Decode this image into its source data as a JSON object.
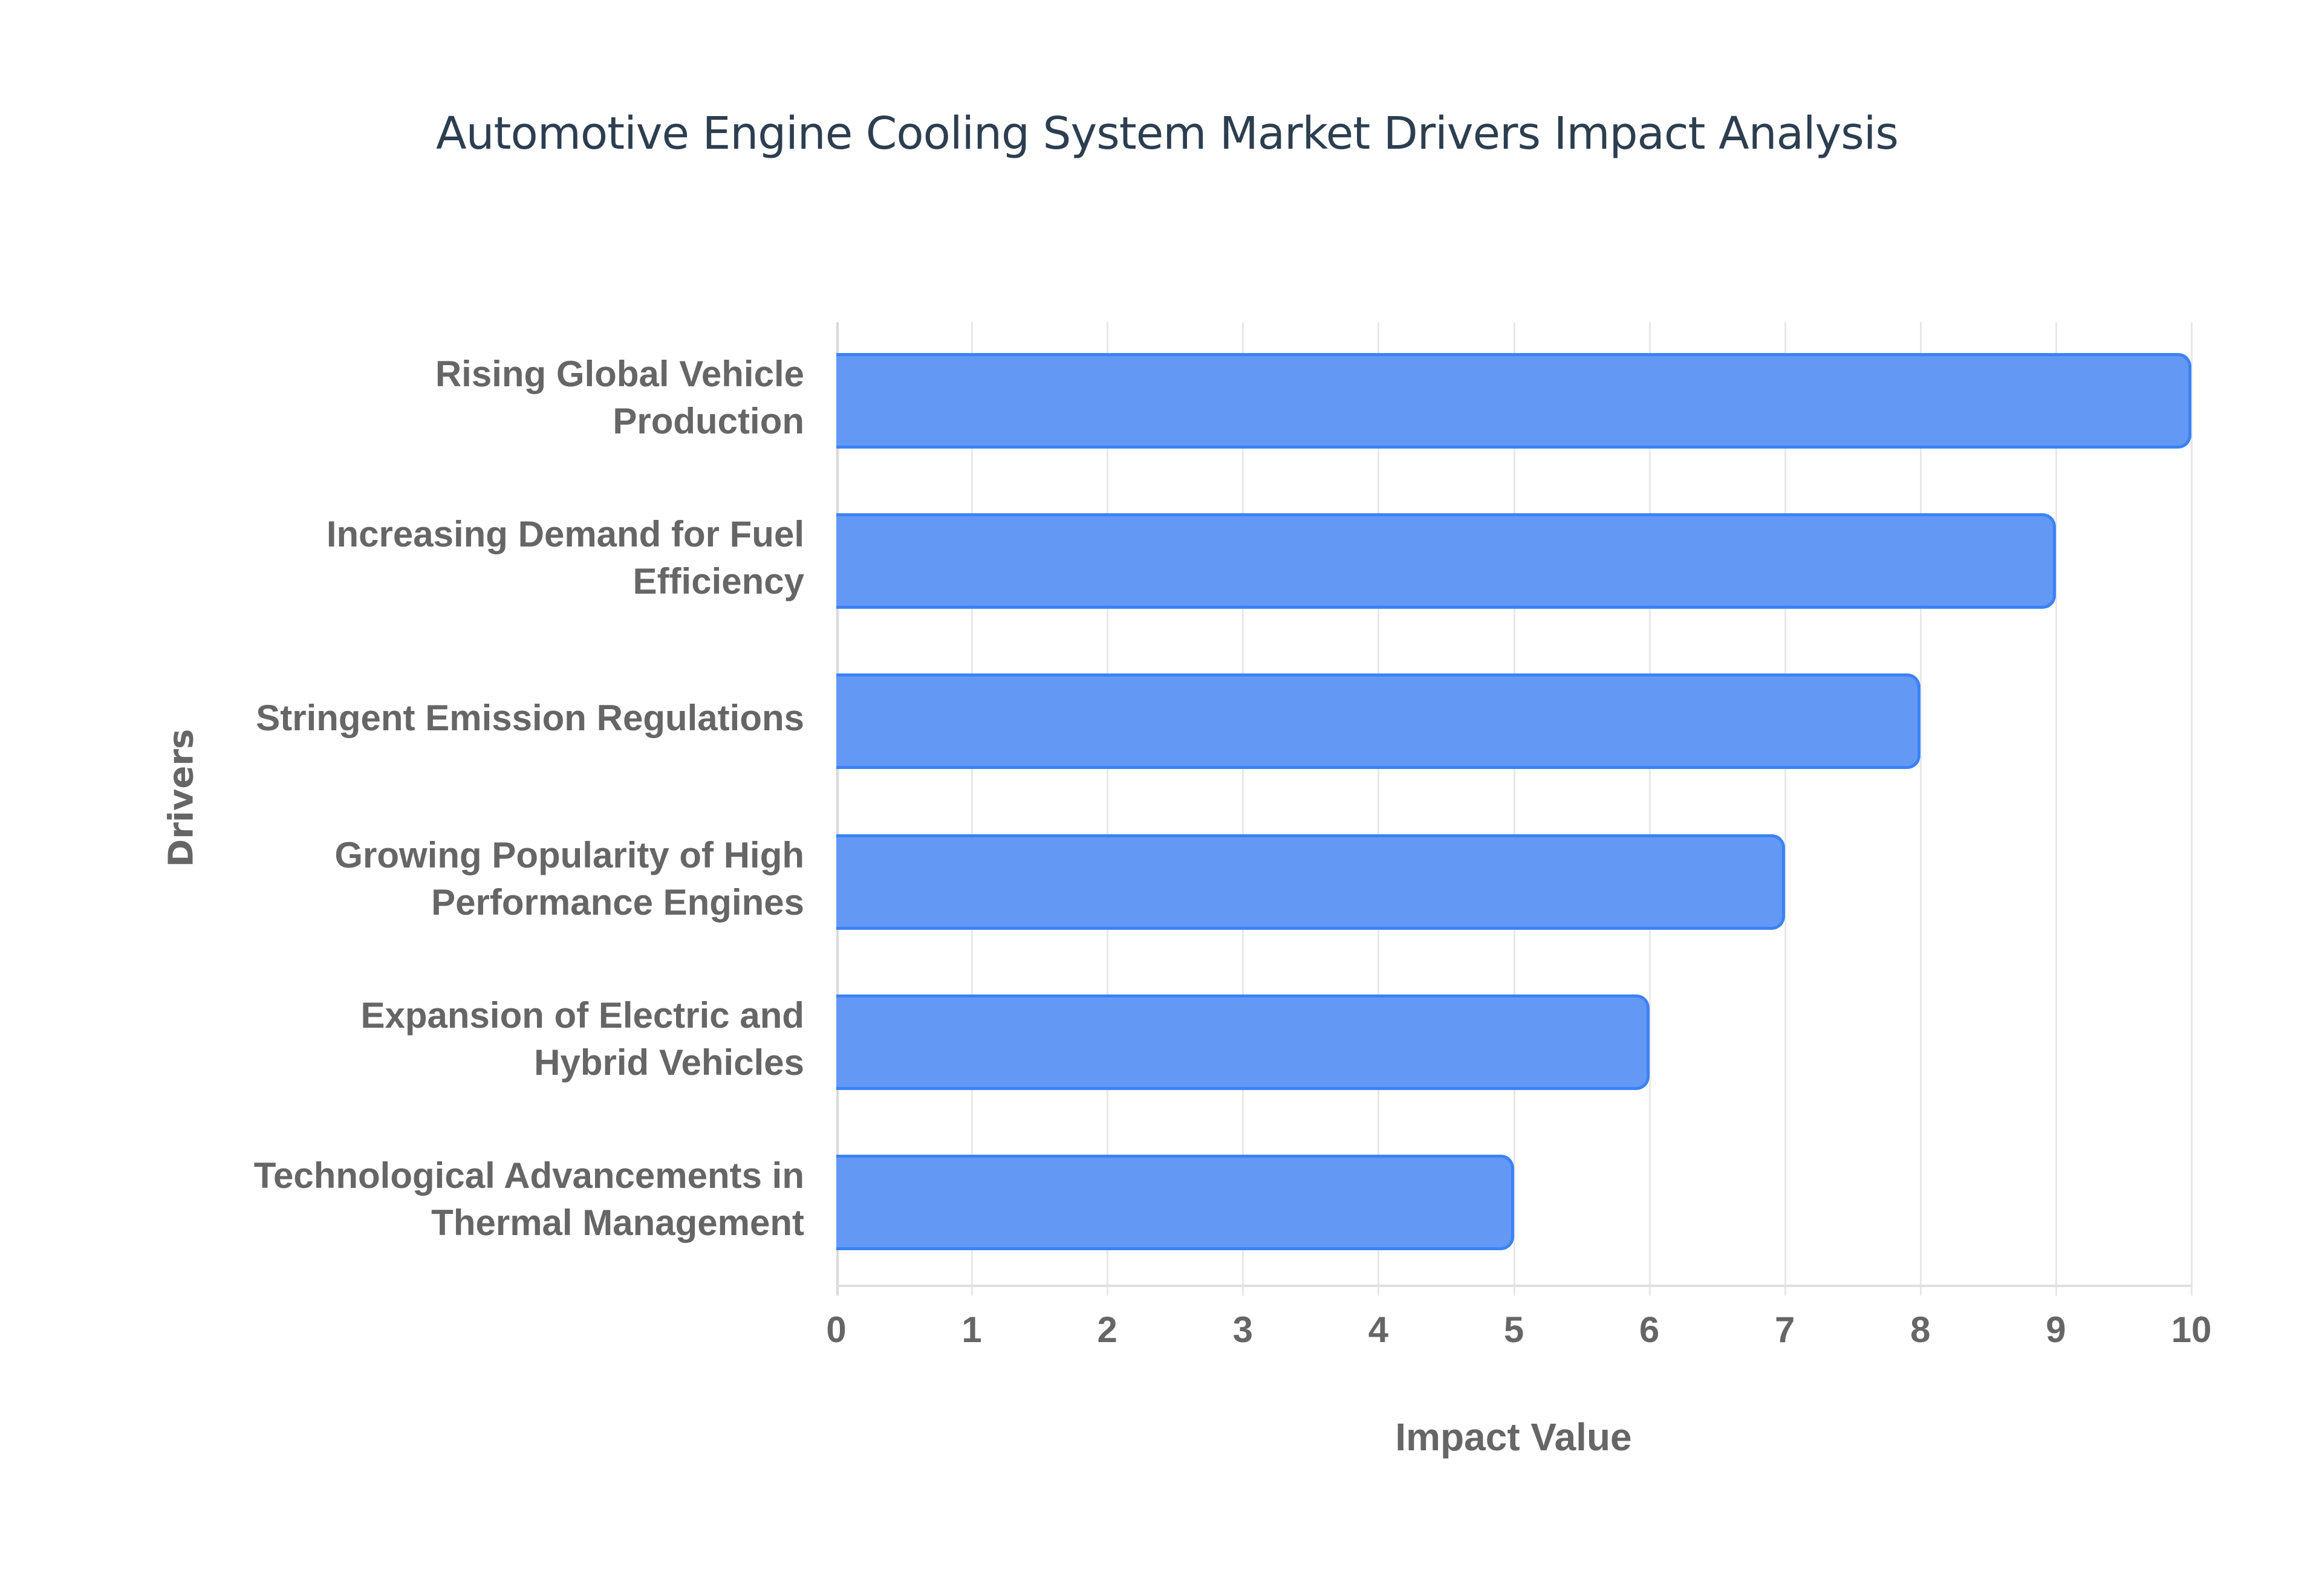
{
  "chart_data": {
    "type": "bar",
    "orientation": "horizontal",
    "title": "Automotive Engine Cooling System Market Drivers Impact Analysis",
    "xlabel": "Impact Value",
    "ylabel": "Drivers",
    "xlim": [
      0,
      10
    ],
    "x_ticks": [
      "0",
      "1",
      "2",
      "3",
      "4",
      "5",
      "6",
      "7",
      "8",
      "9",
      "10"
    ],
    "grid": true,
    "legend": null,
    "categories": [
      "Rising Global Vehicle Production",
      "Increasing Demand for Fuel Efficiency",
      "Stringent Emission Regulations",
      "Growing Popularity of High Performance Engines",
      "Expansion of Electric and Hybrid Vehicles",
      "Technological Advancements in Thermal Management"
    ],
    "category_display": [
      "Rising Global Vehicle\nProduction",
      "Increasing Demand for Fuel\nEfficiency",
      "Stringent Emission Regulations",
      "Growing Popularity of High\nPerformance Engines",
      "Expansion of Electric and\nHybrid Vehicles",
      "Technological Advancements in\nThermal Management"
    ],
    "values": [
      10,
      9,
      8,
      7,
      6,
      5
    ],
    "colors": {
      "bar_fill": "#6399f5",
      "bar_border": "#3b82f6",
      "title": "#2c3e50",
      "axis_text": "#666666",
      "grid": "#e8e8e8"
    }
  }
}
